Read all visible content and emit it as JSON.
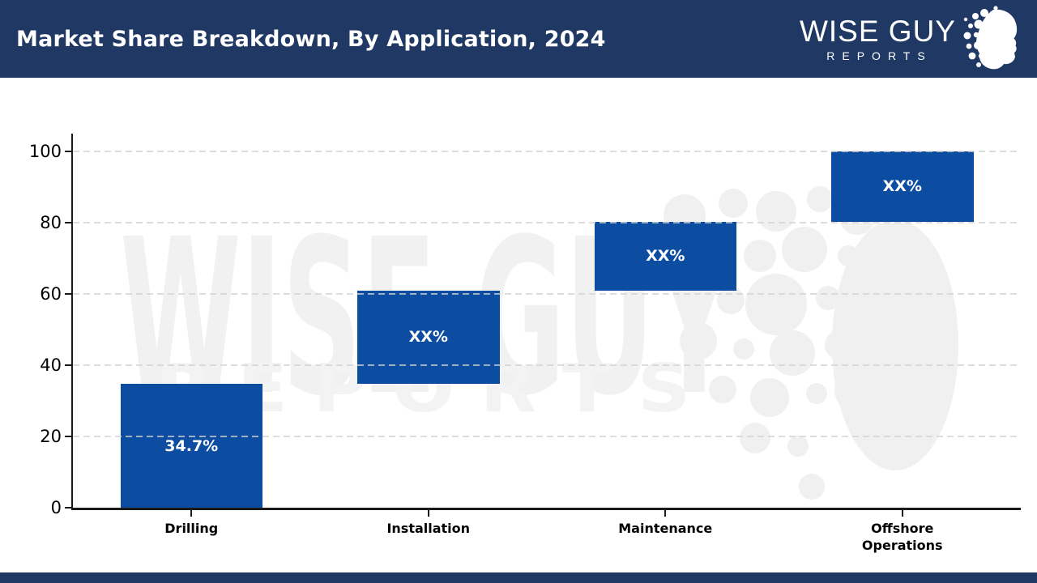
{
  "header": {
    "title": "Market Share Breakdown, By Application, 2024",
    "bg_color": "#1f3864",
    "logo": {
      "line1": "WISE GUY",
      "line2": "REPORTS"
    }
  },
  "watermark": {
    "line1": "WISE GUY",
    "line2": "R E P O R T S"
  },
  "chart_data": {
    "type": "bar",
    "subtype": "waterfall",
    "title": "Market Share Breakdown, By Application, 2024",
    "categories": [
      "Drilling",
      "Installation",
      "Maintenance",
      "Offshore Operations"
    ],
    "segments": [
      {
        "category": "Drilling",
        "start": 0,
        "end": 34.7,
        "label": "34.7%"
      },
      {
        "category": "Installation",
        "start": 34.7,
        "end": 61.0,
        "label": "XX%"
      },
      {
        "category": "Maintenance",
        "start": 61.0,
        "end": 80.3,
        "label": "XX%"
      },
      {
        "category": "Offshore Operations",
        "start": 80.3,
        "end": 100,
        "label": "XX%"
      }
    ],
    "yticks": [
      0,
      20,
      40,
      60,
      80,
      100
    ],
    "ylim": [
      0,
      105
    ],
    "xlabel": "",
    "ylabel": "",
    "grid": "horizontal-dashed",
    "legend_position": "none",
    "bar_color": "#0c4da2",
    "bar_label_color": "#ffffff",
    "axis_color": "#1a1a1a",
    "grid_color": "#d9d9d9"
  }
}
